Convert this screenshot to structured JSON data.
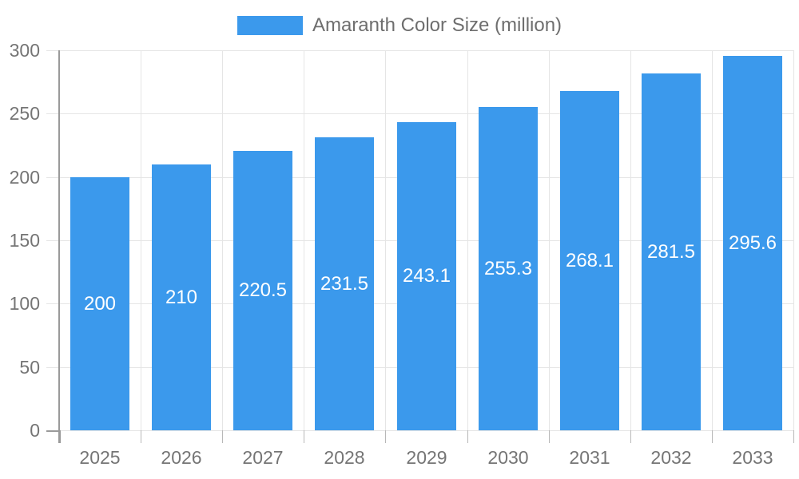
{
  "chart_data": {
    "type": "bar",
    "legend": "Amaranth Color Size (million)",
    "legend_position": "top-center",
    "categories": [
      "2025",
      "2026",
      "2027",
      "2028",
      "2029",
      "2030",
      "2031",
      "2032",
      "2033"
    ],
    "values": [
      200,
      210,
      220.5,
      231.5,
      243.1,
      255.3,
      268.1,
      281.5,
      295.6
    ],
    "value_labels": [
      "200",
      "210",
      "220.5",
      "231.5",
      "243.1",
      "255.3",
      "268.1",
      "281.5",
      "295.6"
    ],
    "xlabel": "",
    "ylabel": "",
    "ylim": [
      0,
      300
    ],
    "ytick_step": 50,
    "ytick_labels": [
      "0",
      "50",
      "100",
      "150",
      "200",
      "250",
      "300"
    ],
    "grid": true,
    "colors": {
      "bar": "#3B99EC",
      "grid": "#e5e5e5",
      "axis": "#9a9a9a",
      "x_tick": "#b8b8b8",
      "tick_text": "#757575",
      "legend_text": "#6e6e6e",
      "value_text": "#ffffff",
      "background": "#ffffff"
    }
  }
}
